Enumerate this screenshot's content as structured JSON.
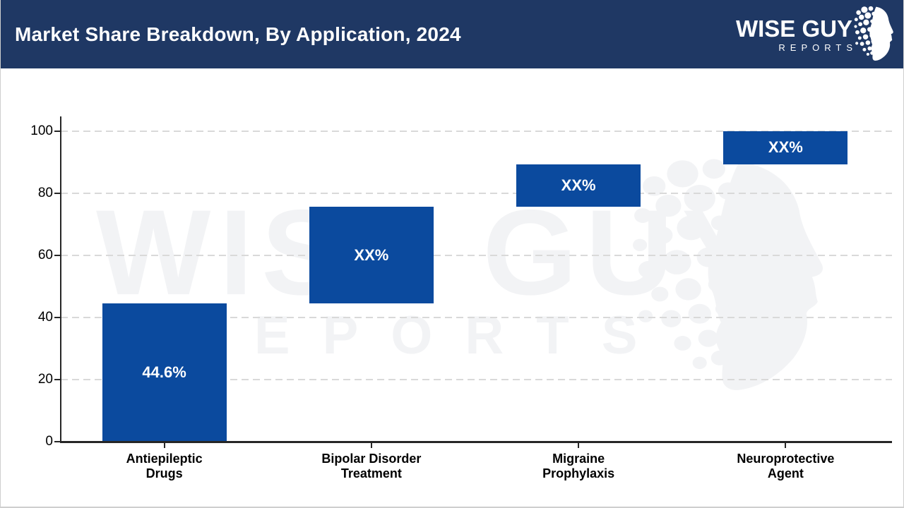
{
  "header": {
    "title": "Market Share Breakdown, By Application, 2024",
    "logo": {
      "name": "Wise Guy Reports",
      "line1": "WISE GUY",
      "line2": "REPORTS"
    }
  },
  "watermark": {
    "line1": "WISE GUY",
    "line2": "REPORTS"
  },
  "chart_data": {
    "type": "bar",
    "subtype": "waterfall",
    "title": "Market Share Breakdown, By Application, 2024",
    "categories": [
      "Antiepileptic\nDrugs",
      "Bipolar Disorder\nTreatment",
      "Migraine\nProphylaxis",
      "Neuroprotective\nAgent"
    ],
    "segments": [
      {
        "category": "Antiepileptic Drugs",
        "label": "44.6%",
        "start": 0,
        "end": 44.6
      },
      {
        "category": "Bipolar Disorder Treatment",
        "label": "XX%",
        "start": 44.6,
        "end": 75.6
      },
      {
        "category": "Migraine Prophylaxis",
        "label": "XX%",
        "start": 75.6,
        "end": 89.4
      },
      {
        "category": "Neuroprotective Agent",
        "label": "XX%",
        "start": 89.4,
        "end": 100
      }
    ],
    "y_ticks": [
      0,
      20,
      40,
      60,
      80,
      100
    ],
    "ylim": [
      0,
      105
    ],
    "xlabel": "",
    "ylabel": "",
    "grid": "horizontal-dashed",
    "legend": "none",
    "colors": {
      "bar": "#0b4a9e",
      "bar_label": "#ffffff",
      "axis": "#262626",
      "gridline": "#d9d9d9",
      "tick_label": "#000000",
      "header_bg": "#1f3864",
      "watermark": "#f2f3f5"
    }
  }
}
